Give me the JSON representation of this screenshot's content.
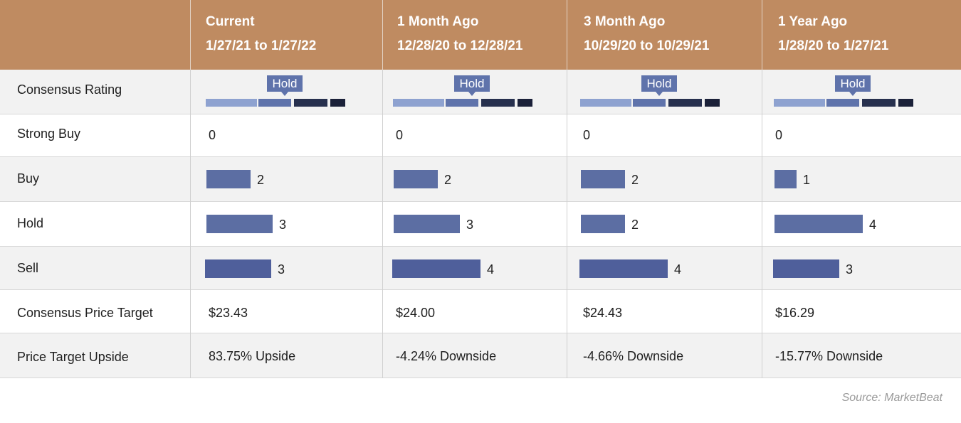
{
  "chart_data": {
    "type": "table",
    "columns": [
      {
        "title": "Current",
        "range": "1/27/21 to 1/27/22"
      },
      {
        "title": "1 Month Ago",
        "range": "12/28/20 to 12/28/21"
      },
      {
        "title": "3 Month Ago",
        "range": "10/29/20 to 10/29/21"
      },
      {
        "title": "1 Year Ago",
        "range": "1/28/20 to 1/27/21"
      }
    ],
    "row_labels": {
      "consensus_rating": "Consensus Rating",
      "strong_buy": "Strong Buy",
      "buy": "Buy",
      "hold": "Hold",
      "sell": "Sell",
      "price_target": "Consensus Price Target",
      "upside": "Price Target Upside"
    },
    "consensus_rating": [
      "Hold",
      "Hold",
      "Hold",
      "Hold"
    ],
    "strong_buy": [
      0,
      0,
      0,
      0
    ],
    "buy": [
      2,
      2,
      2,
      1
    ],
    "hold": [
      3,
      3,
      2,
      4
    ],
    "sell": [
      3,
      4,
      4,
      3
    ],
    "price_target": [
      "$23.43",
      "$24.00",
      "$24.43",
      "$16.29"
    ],
    "upside": [
      "83.75% Upside",
      "-4.24% Downside",
      "-4.66% Downside",
      "-15.77% Downside"
    ]
  },
  "source": "Source: MarketBeat",
  "colors": {
    "header_bg": "#bf8b61",
    "bar": "#5c6ea3",
    "hold_tag": "#5f73ab"
  }
}
